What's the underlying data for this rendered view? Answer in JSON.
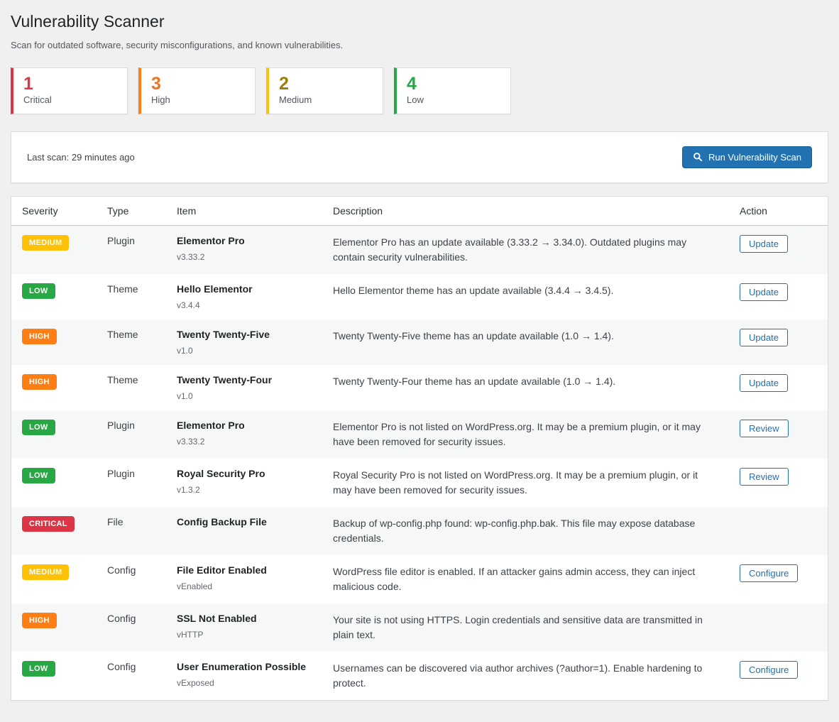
{
  "page": {
    "title": "Vulnerability Scanner",
    "subtitle": "Scan for outdated software, security misconfigurations, and known vulnerabilities."
  },
  "summary_cards": [
    {
      "count": "1",
      "label": "Critical",
      "color": "#dc3545",
      "count_color": "#dc3545"
    },
    {
      "count": "3",
      "label": "High",
      "color": "#fd7e14",
      "count_color": "#f0731d"
    },
    {
      "count": "2",
      "label": "Medium",
      "color": "#ffc107",
      "count_color": "#9c7e0d"
    },
    {
      "count": "4",
      "label": "Low",
      "color": "#28a745",
      "count_color": "#28a745"
    }
  ],
  "scan_bar": {
    "last_scan": "Last scan: 29 minutes ago",
    "button_label": "Run Vulnerability Scan"
  },
  "severity_colors": {
    "CRITICAL": "#dc3545",
    "HIGH": "#fd7e14",
    "MEDIUM": "#ffc107",
    "LOW": "#28a745"
  },
  "colors": {
    "accent_blue": "#2271b1",
    "page_background": "#f0f0f1"
  },
  "icons": {
    "run_button_icon": "search-icon"
  },
  "table": {
    "headers": [
      "Severity",
      "Type",
      "Item",
      "Description",
      "Action"
    ],
    "rows": [
      {
        "severity": "MEDIUM",
        "type": "Plugin",
        "item": "Elementor Pro",
        "version": "v3.33.2",
        "description": "Elementor Pro has an update available (3.33.2 → 3.34.0). Outdated plugins may contain security vulnerabilities.",
        "action": "Update"
      },
      {
        "severity": "LOW",
        "type": "Theme",
        "item": "Hello Elementor",
        "version": "v3.4.4",
        "description": "Hello Elementor theme has an update available (3.4.4 → 3.4.5).",
        "action": "Update"
      },
      {
        "severity": "HIGH",
        "type": "Theme",
        "item": "Twenty Twenty-Five",
        "version": "v1.0",
        "description": "Twenty Twenty-Five theme has an update available (1.0 → 1.4).",
        "action": "Update"
      },
      {
        "severity": "HIGH",
        "type": "Theme",
        "item": "Twenty Twenty-Four",
        "version": "v1.0",
        "description": "Twenty Twenty-Four theme has an update available (1.0 → 1.4).",
        "action": "Update"
      },
      {
        "severity": "LOW",
        "type": "Plugin",
        "item": "Elementor Pro",
        "version": "v3.33.2",
        "description": "Elementor Pro is not listed on WordPress.org. It may be a premium plugin, or it may have been removed for security issues.",
        "action": "Review"
      },
      {
        "severity": "LOW",
        "type": "Plugin",
        "item": "Royal Security Pro",
        "version": "v1.3.2",
        "description": "Royal Security Pro is not listed on WordPress.org. It may be a premium plugin, or it may have been removed for security issues.",
        "action": "Review"
      },
      {
        "severity": "CRITICAL",
        "type": "File",
        "item": "Config Backup File",
        "version": "",
        "description": "Backup of wp-config.php found: wp-config.php.bak. This file may expose database credentials.",
        "action": ""
      },
      {
        "severity": "MEDIUM",
        "type": "Config",
        "item": "File Editor Enabled",
        "version": "vEnabled",
        "description": "WordPress file editor is enabled. If an attacker gains admin access, they can inject malicious code.",
        "action": "Configure"
      },
      {
        "severity": "HIGH",
        "type": "Config",
        "item": "SSL Not Enabled",
        "version": "vHTTP",
        "description": "Your site is not using HTTPS. Login credentials and sensitive data are transmitted in plain text.",
        "action": ""
      },
      {
        "severity": "LOW",
        "type": "Config",
        "item": "User Enumeration Possible",
        "version": "vExposed",
        "description": "Usernames can be discovered via author archives (?author=1). Enable hardening to protect.",
        "action": "Configure"
      }
    ]
  }
}
